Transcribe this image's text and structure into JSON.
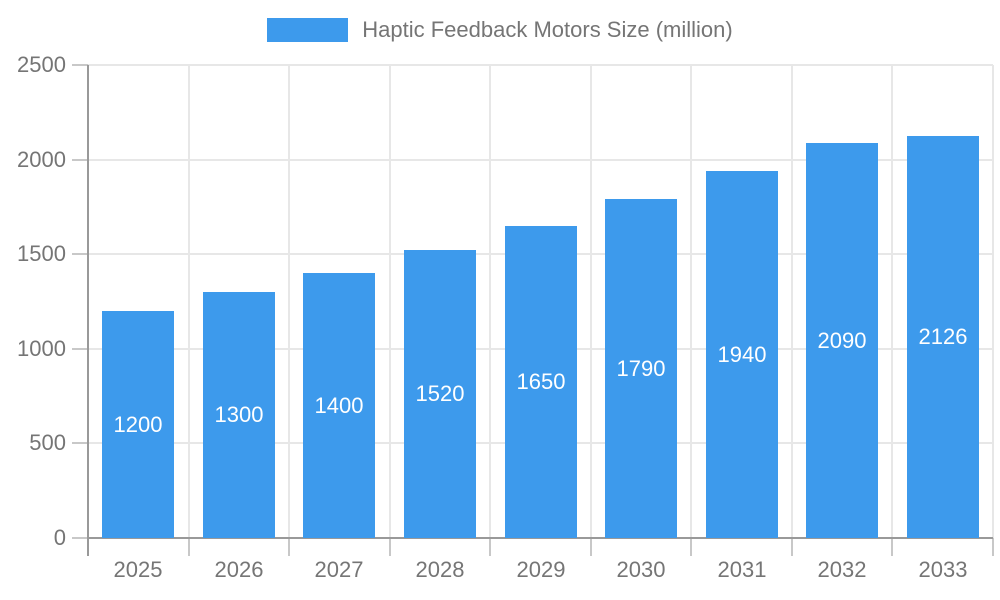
{
  "legend": {
    "label": "Haptic Feedback Motors Size (million)"
  },
  "colors": {
    "bar": "#3D9AEC",
    "grid": "#e7e7e7",
    "axis": "#999999",
    "tick": "#c8c8c8",
    "text": "#757575",
    "value_text": "#ffffff",
    "background": "#ffffff"
  },
  "chart_data": {
    "type": "bar",
    "title": "",
    "legend_label": "Haptic Feedback Motors Size (million)",
    "legend_position": "top-center",
    "categories": [
      "2025",
      "2026",
      "2027",
      "2028",
      "2029",
      "2030",
      "2031",
      "2032",
      "2033"
    ],
    "values": [
      1200,
      1300,
      1400,
      1520,
      1650,
      1790,
      1940,
      2090,
      2126
    ],
    "xlabel": "",
    "ylabel": "",
    "ylim": [
      0,
      2500
    ],
    "yticks": [
      0,
      500,
      1000,
      1500,
      2000,
      2500
    ],
    "grid": true,
    "value_labels": "inside-center"
  }
}
